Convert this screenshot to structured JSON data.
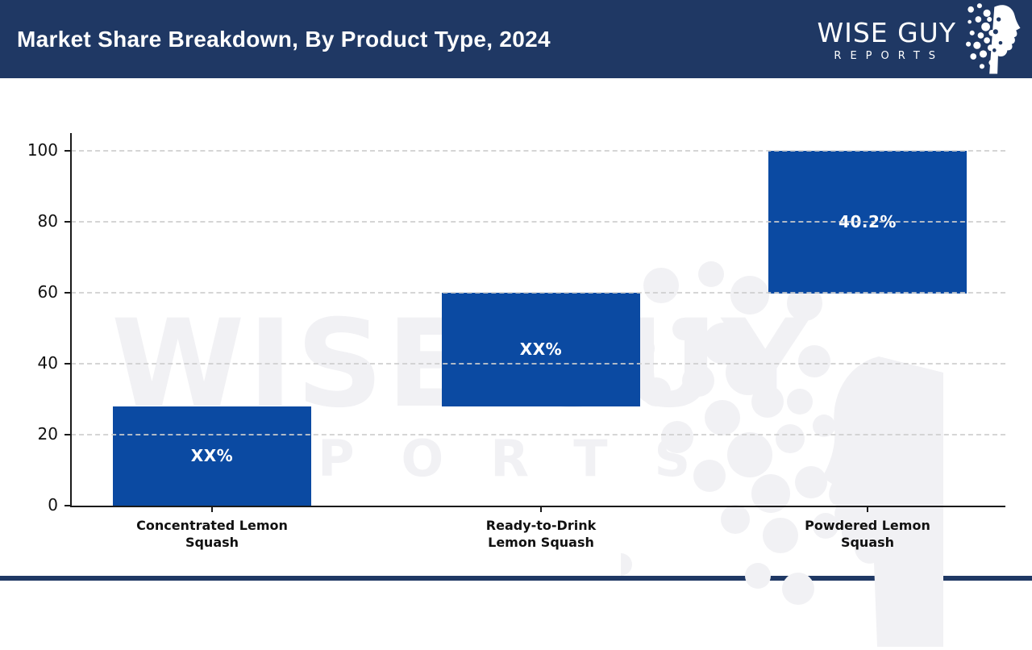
{
  "header": {
    "title": "Market Share Breakdown, By Product Type, 2024",
    "logo": {
      "line1": "WISE GUY",
      "line2": "REPORTS"
    }
  },
  "watermark": {
    "line1": "WISE GUY",
    "line2": "REPORTS"
  },
  "chart_data": {
    "type": "bar",
    "subtype": "stacked-waterfall-segments",
    "title": "Market Share Breakdown, By Product Type, 2024",
    "categories": [
      "Concentrated Lemon\nSquash",
      "Ready-to-Drink\nLemon Squash",
      "Powdered Lemon\nSquash"
    ],
    "segments": [
      {
        "category": "Concentrated Lemon\nSquash",
        "start": 0,
        "end": 28,
        "label": "XX%"
      },
      {
        "category": "Ready-to-Drink\nLemon Squash",
        "start": 28,
        "end": 60,
        "label": "XX%"
      },
      {
        "category": "Powdered Lemon\nSquash",
        "start": 59.8,
        "end": 100,
        "label": "40.2%"
      }
    ],
    "values": [
      28,
      32,
      40.2
    ],
    "yticks": [
      0,
      20,
      40,
      60,
      80,
      100
    ],
    "ylim": [
      0,
      105
    ],
    "xlabel": "",
    "ylabel": "",
    "grid": "horizontal-dashed",
    "legend": "none",
    "bar_color": "#0b4aa2",
    "label_color": "#ffffff"
  },
  "colors": {
    "header_bg": "#1f3864",
    "bar": "#0b4aa2",
    "grid": "#cecece",
    "watermark": "#f1f1f4",
    "axis": "#1a1a1a"
  }
}
